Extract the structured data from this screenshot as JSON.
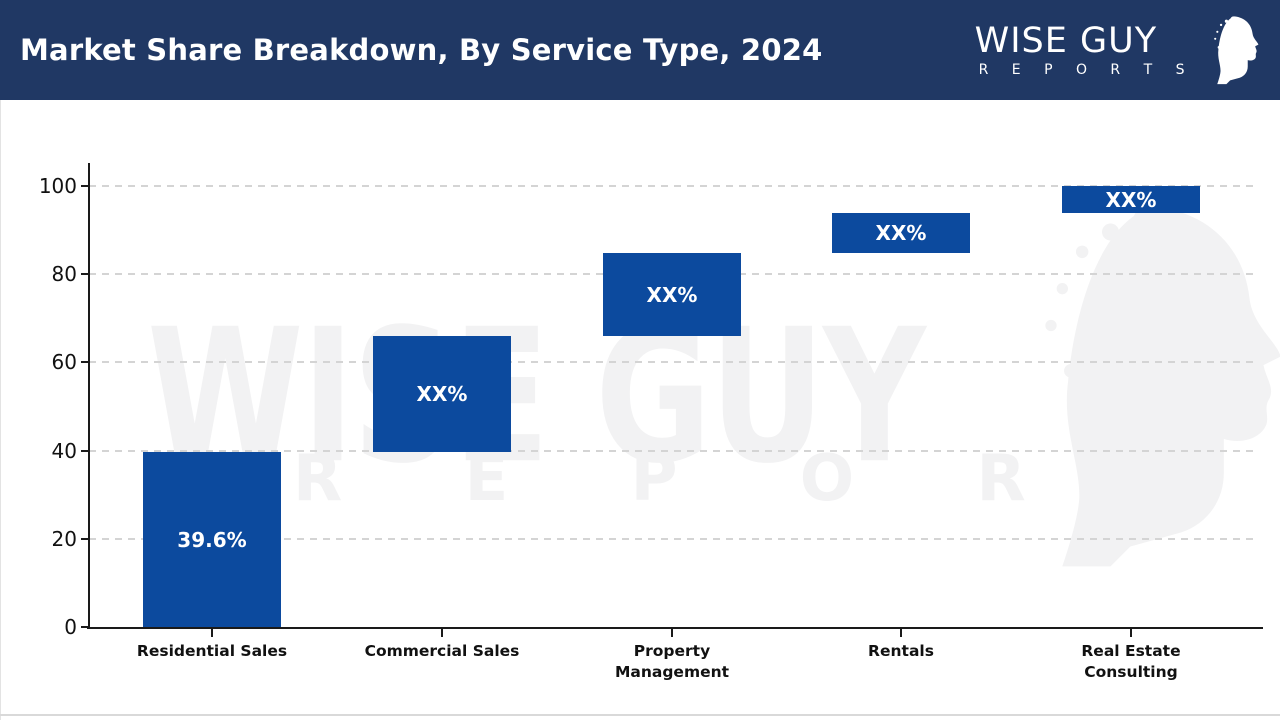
{
  "header": {
    "title": "Market Share Breakdown, By Service Type, 2024",
    "logo": {
      "line1": "WISE GUY",
      "line2": "R E P O R T S"
    }
  },
  "watermark": {
    "line1": "WISE GUY",
    "line2": "R E P O R T S"
  },
  "colors": {
    "header_bg": "#203864",
    "header_text": "#ffffff",
    "bar": "#0c4a9e",
    "bar_label_text": "#ffffff",
    "grid": "#d4d4d4",
    "axis": "#1a1a1a",
    "tick_text": "#111111",
    "watermark": "#f2f2f3"
  },
  "chart_data": {
    "type": "bar",
    "subtype": "waterfall",
    "title": "Market Share Breakdown, By Service Type, 2024",
    "xlabel": "",
    "ylabel": "",
    "ylim": [
      0,
      100
    ],
    "yticks": [
      0,
      20,
      40,
      60,
      80,
      100
    ],
    "grid": "dashed-horizontal",
    "legend": false,
    "categories": [
      "Residential Sales",
      "Commercial Sales",
      "Property Management",
      "Rentals",
      "Real Estate Consulting"
    ],
    "category_lines": [
      [
        "Residential Sales"
      ],
      [
        "Commercial Sales"
      ],
      [
        "Property",
        "Management"
      ],
      [
        "Rentals"
      ],
      [
        "Real Estate",
        "Consulting"
      ]
    ],
    "series": [
      {
        "name": "Market Share",
        "segments": [
          {
            "category": "Residential Sales",
            "start": 0,
            "end": 39.6,
            "increment": 39.6,
            "label": "39.6%"
          },
          {
            "category": "Commercial Sales",
            "start": 39.6,
            "end": 66.0,
            "increment": 26.4,
            "label": "XX%"
          },
          {
            "category": "Property Management",
            "start": 66.0,
            "end": 84.7,
            "increment": 18.7,
            "label": "XX%"
          },
          {
            "category": "Rentals",
            "start": 84.7,
            "end": 93.8,
            "increment": 9.1,
            "label": "XX%"
          },
          {
            "category": "Real Estate Consulting",
            "start": 93.8,
            "end": 100.0,
            "increment": 6.2,
            "label": "XX%"
          }
        ]
      }
    ]
  }
}
